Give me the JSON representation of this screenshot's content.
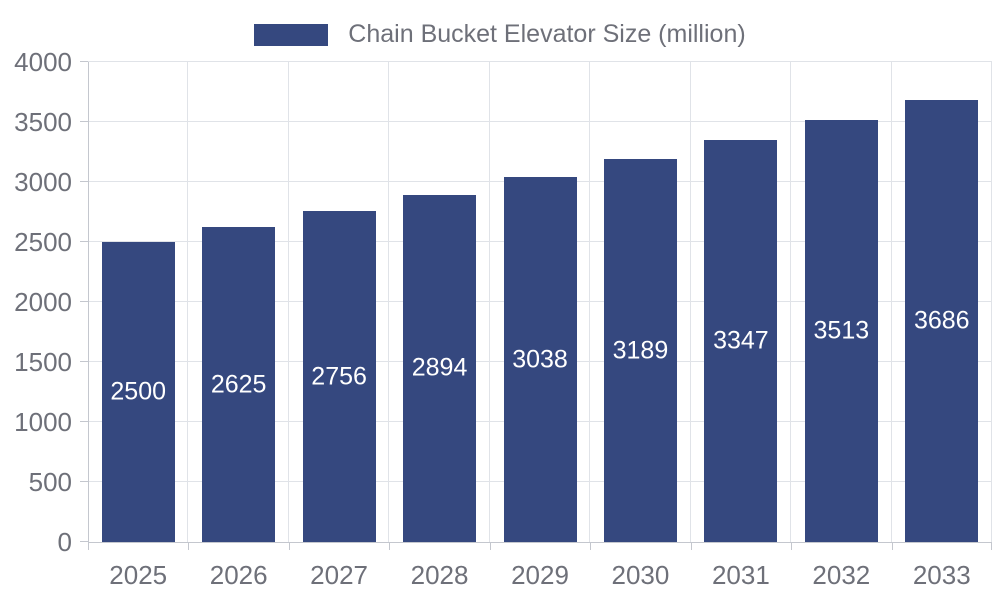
{
  "chart_data": {
    "type": "bar",
    "title": "",
    "categories": [
      "2025",
      "2026",
      "2027",
      "2028",
      "2029",
      "2030",
      "2031",
      "2032",
      "2033"
    ],
    "series": [
      {
        "name": "Chain Bucket Elevator Size (million)",
        "values": [
          2500,
          2625,
          2756,
          2894,
          3038,
          3189,
          3347,
          3513,
          3686
        ]
      }
    ],
    "xlabel": "",
    "ylabel": "",
    "ylim": [
      0,
      4000
    ],
    "yticks": [
      0,
      500,
      1000,
      1500,
      2000,
      2500,
      3000,
      3500,
      4000
    ],
    "grid": true,
    "legend_position": "top-center",
    "value_label_position": "inside-middle",
    "colors": {
      "bar": "#35487F",
      "axis_text": "#6E7079",
      "legend_text": "#6E7079",
      "grid_line": "#E0E3E8",
      "axis_line": "#C4C7CE",
      "value_label": "#ffffff",
      "background": "#ffffff"
    }
  }
}
